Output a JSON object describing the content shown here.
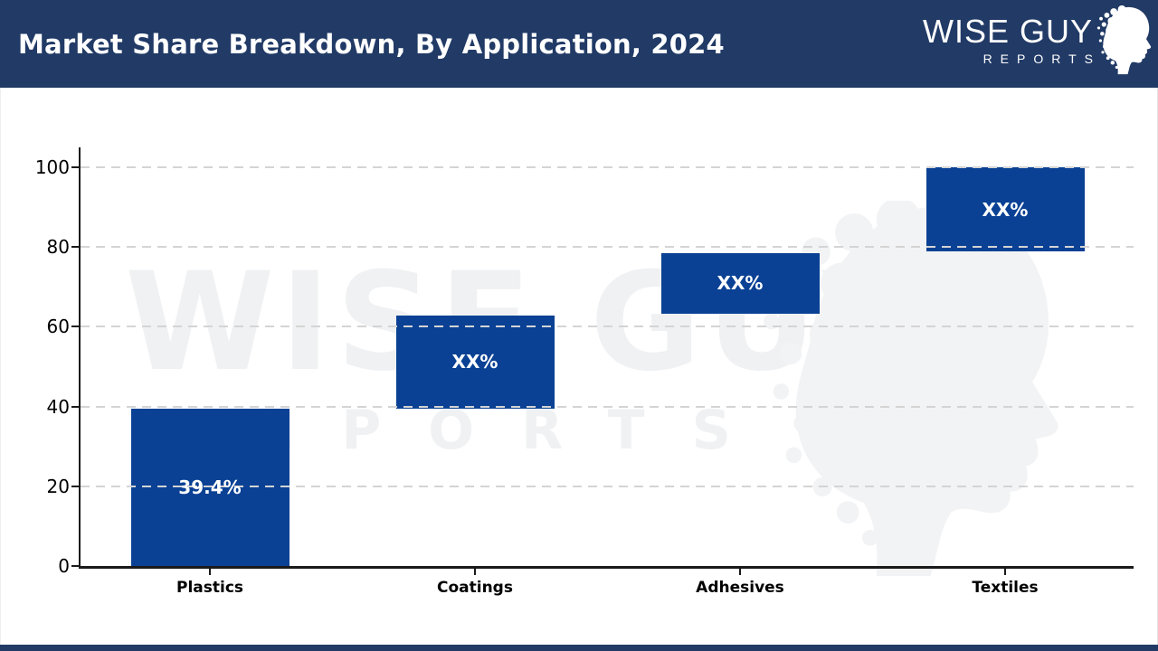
{
  "header": {
    "title": "Market Share Breakdown, By Application, 2024",
    "logo": {
      "line1": "WISE GUY",
      "line2": "REPORTS"
    }
  },
  "watermark": {
    "line1": "WISE GUY",
    "line2": "REPORTS"
  },
  "colors": {
    "header_navy": "#213a66",
    "footer_navy": "#213a66",
    "bar_blue": "#0a4194",
    "bar_label_white": "#ffffff",
    "gridline_gray": "#d4d4d4",
    "axis_black": "#1a1a1a",
    "watermark_gray": "#f0f1f3"
  },
  "chart_data": {
    "type": "bar",
    "subtype": "waterfall",
    "title": "Market Share Breakdown, By Application, 2024",
    "xlabel": "",
    "ylabel": "",
    "categories": [
      "Plastics",
      "Coatings",
      "Adhesives",
      "Textiles"
    ],
    "segments": [
      {
        "category": "Plastics",
        "start": 0,
        "end": 39.4,
        "label": "39.4%"
      },
      {
        "category": "Coatings",
        "start": 39.4,
        "end": 62.9,
        "label": "XX%"
      },
      {
        "category": "Adhesives",
        "start": 63.3,
        "end": 78.5,
        "label": "XX%"
      },
      {
        "category": "Textiles",
        "start": 78.8,
        "end": 100,
        "label": "XX%"
      }
    ],
    "yticks": [
      0,
      20,
      40,
      60,
      80,
      100
    ],
    "ylim": [
      0,
      105
    ],
    "grid": "horizontal dashed, drawn over bars",
    "legend": "none"
  }
}
